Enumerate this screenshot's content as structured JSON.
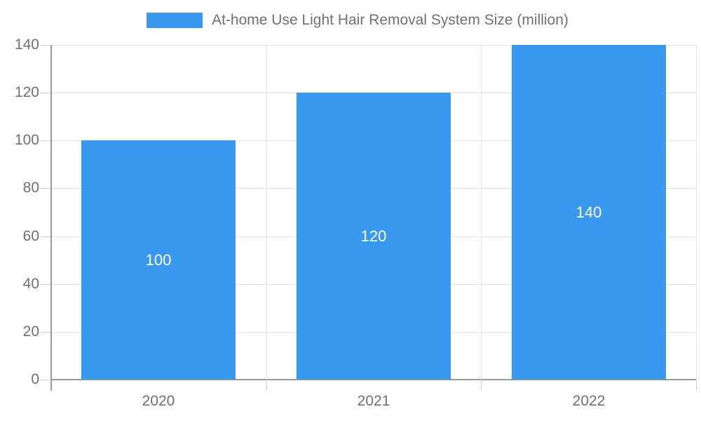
{
  "chart_data": {
    "type": "bar",
    "title": "At-home Use Light Hair Removal System Size (million)",
    "categories": [
      "2020",
      "2021",
      "2022"
    ],
    "values": [
      100,
      120,
      140
    ],
    "bar_value_labels": [
      "100",
      "120",
      "140"
    ],
    "yticks": [
      "0",
      "20",
      "40",
      "60",
      "80",
      "100",
      "120",
      "140"
    ],
    "ytick_values": [
      0,
      20,
      40,
      60,
      80,
      100,
      120,
      140
    ],
    "ylim": [
      0,
      140
    ],
    "xlabel": "",
    "ylabel": "",
    "grid": true,
    "legend_position": "top",
    "legend": {
      "label": "At-home Use Light Hair Removal System Size (million)"
    }
  },
  "colors": {
    "bar": "#3999EF",
    "grid_line": "#e4e4e4",
    "axis_line": "#9a9a9a",
    "tick_line": "#cfcfcf",
    "tick_text": "#707070",
    "bar_label_text": "#ffffff",
    "background": "#ffffff"
  }
}
